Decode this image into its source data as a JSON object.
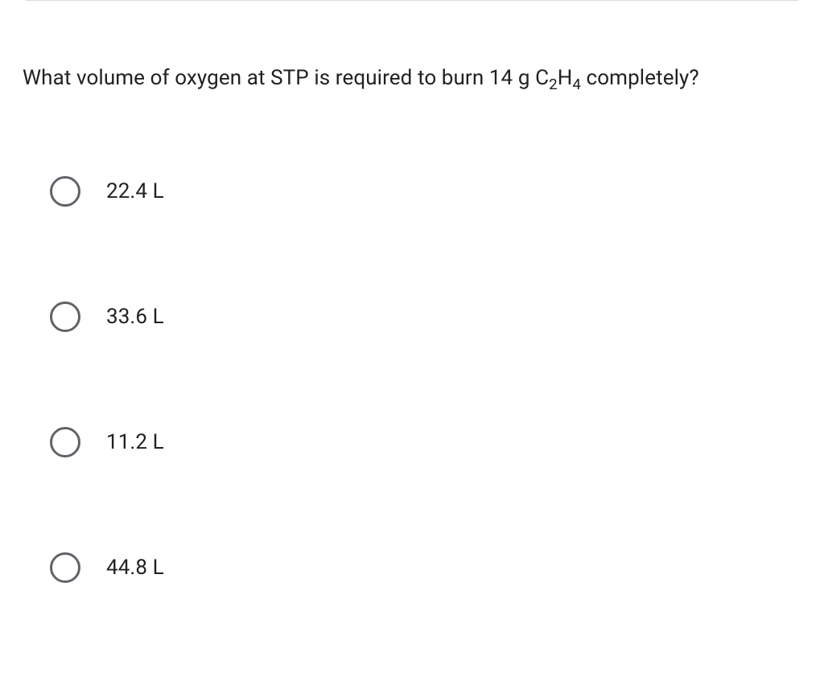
{
  "question": {
    "text_part1": "What volume of oxygen at STP is required to burn 14 g C",
    "sub1": "2",
    "text_part2": "H",
    "sub2": "4",
    "text_part3": " completely?"
  },
  "options": [
    {
      "label": "22.4 L"
    },
    {
      "label": "33.6 L"
    },
    {
      "label": "11.2 L"
    },
    {
      "label": "44.8 L"
    }
  ],
  "colors": {
    "text": "#202124",
    "radio_border": "#5f6368",
    "divider": "#dadce0",
    "background": "#ffffff"
  },
  "typography": {
    "question_fontsize": 26,
    "option_fontsize": 26
  }
}
